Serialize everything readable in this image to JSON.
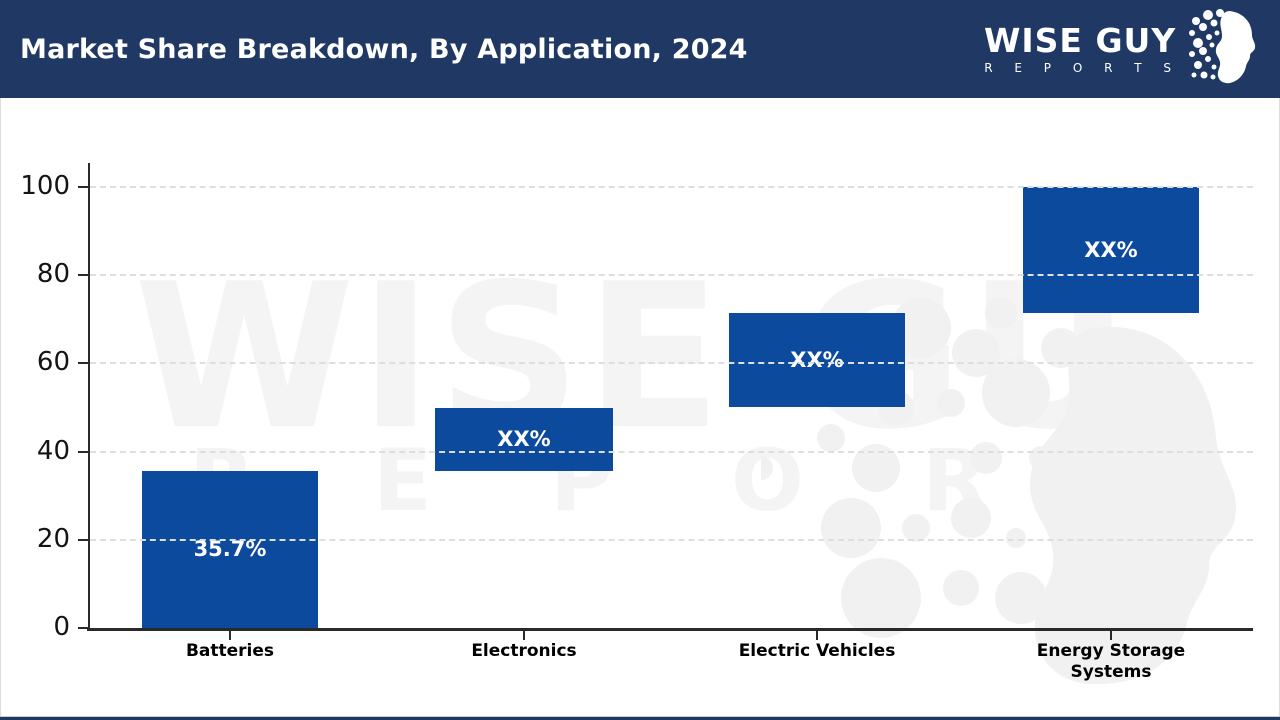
{
  "header": {
    "title": "Market Share Breakdown, By Application, 2024",
    "logo": {
      "wordmark": "WISE GUY",
      "subtext": "R E P O R T S"
    }
  },
  "watermark": {
    "line1": "WISE GU",
    "line2": "R E P O R T S"
  },
  "chart_data": {
    "type": "bar",
    "subtype": "waterfall",
    "title": "Market Share Breakdown, By Application, 2024",
    "categories": [
      "Batteries",
      "Electronics",
      "Electric Vehicles",
      "Energy Storage Systems"
    ],
    "segments": [
      {
        "category": "Batteries",
        "start": 0,
        "end": 35.7,
        "label": "35.7%"
      },
      {
        "category": "Electronics",
        "start": 35.7,
        "end": 50,
        "label": "XX%"
      },
      {
        "category": "Electric Vehicles",
        "start": 50,
        "end": 71.4,
        "label": "XX%"
      },
      {
        "category": "Energy Storage Systems",
        "start": 71.4,
        "end": 100,
        "label": "XX%"
      }
    ],
    "yticks": [
      0,
      20,
      40,
      60,
      80,
      100
    ],
    "ylim": [
      0,
      105
    ],
    "xlabel": "",
    "ylabel": "",
    "grid": "horizontal-dashed",
    "legend": "none",
    "bar_color": "#0c4a9e",
    "bar_label_color": "#ffffff"
  },
  "colors": {
    "header_bg": "#1f3864",
    "accent_blue": "#0c4a9e",
    "axis": "#2a2a2a",
    "grid": "#dedede"
  }
}
